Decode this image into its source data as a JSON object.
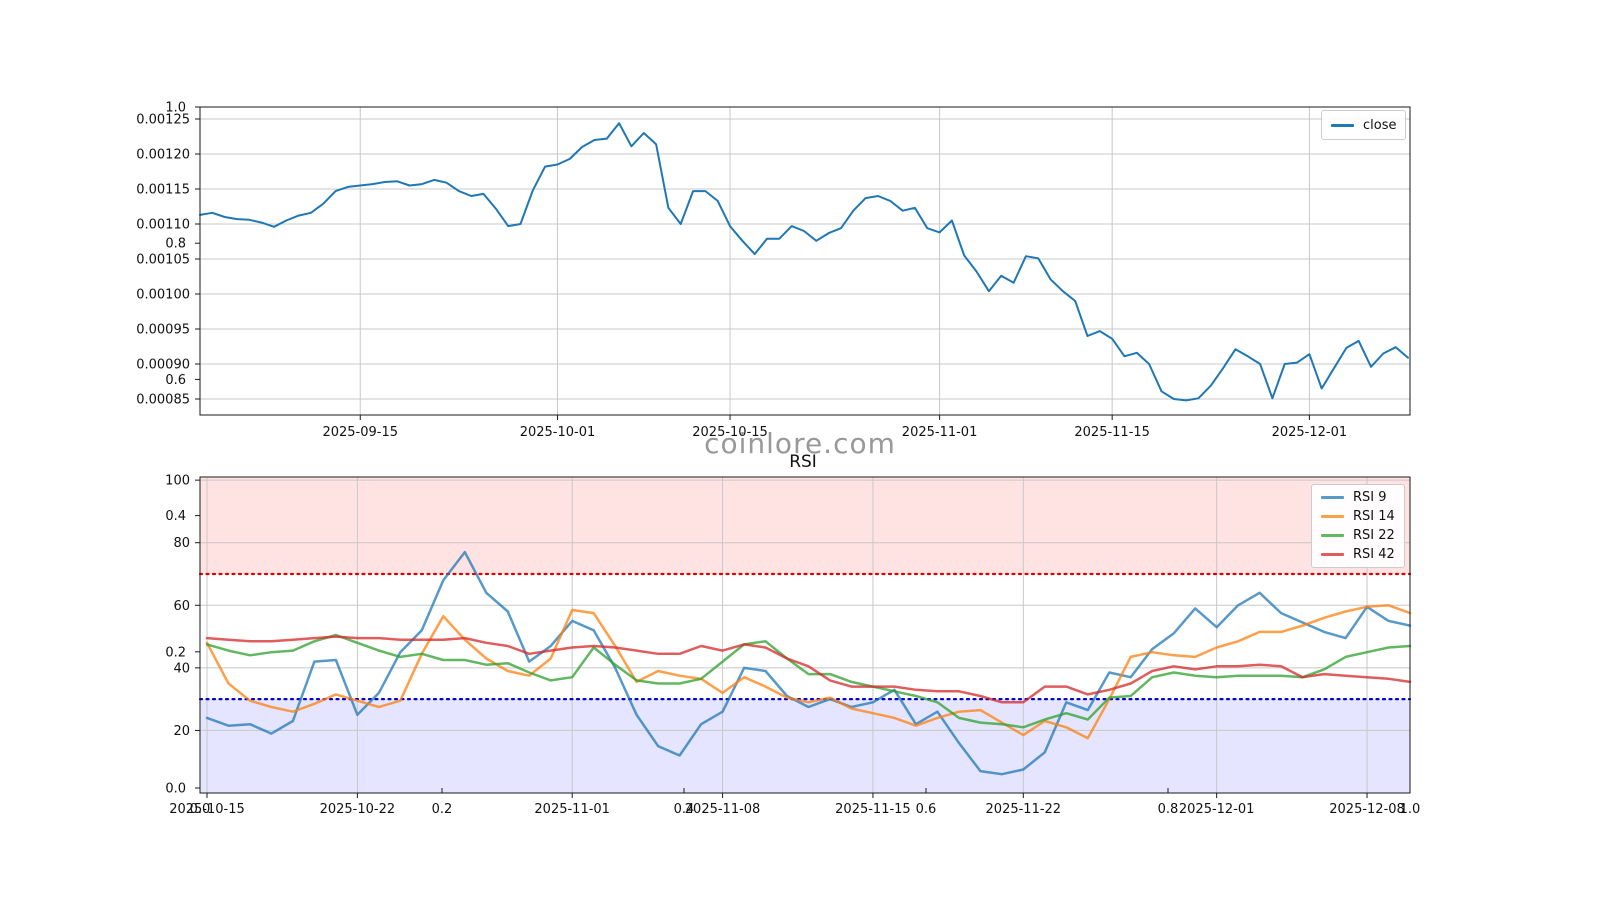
{
  "watermark": "coinlore.com",
  "colors": {
    "close": "#1f77b4",
    "rsi9": "#1f77b4",
    "rsi14": "#ff7f0e",
    "rsi22": "#2ca02c",
    "rsi42": "#d62728",
    "grid": "#c8c8c8",
    "spine": "#1a1a1a",
    "tick_text": "#111111",
    "watermark_gray": "#999999",
    "overbought_band": "rgba(255,0,0,0.11)",
    "oversold_band": "rgba(0,0,255,0.10)",
    "overbought_line": "#dd0000",
    "oversold_line": "#0000cc"
  },
  "overlay_axis": {
    "x_tick_labels": [
      "0.0",
      "0.2",
      "0.4",
      "0.6",
      "0.8",
      "1.0"
    ],
    "y_tick_labels": [
      "1.0",
      "0.8",
      "0.6",
      "0.4",
      "0.2",
      "0.0"
    ]
  },
  "chart_data": [
    {
      "id": "price",
      "type": "line",
      "title": "",
      "legend_entries": [
        "close"
      ],
      "legend_position": "upper right",
      "grid": true,
      "x_start_date": "2025-09-02",
      "x_tick_labels": [
        "2025-09-15",
        "2025-10-01",
        "2025-10-15",
        "2025-11-01",
        "2025-11-15",
        "2025-12-01"
      ],
      "x_tick_index": [
        13,
        29,
        43,
        60,
        74,
        90
      ],
      "y_tick_labels": [
        "0.00085",
        "0.00090",
        "0.00095",
        "0.00100",
        "0.00105",
        "0.00110",
        "0.00115",
        "0.00120",
        "0.00125"
      ],
      "y_tick_values_e5": [
        85,
        90,
        95,
        100,
        105,
        110,
        115,
        120,
        125
      ],
      "ylim_e5": [
        82.7,
        126.7
      ],
      "value_scale": "values are price * 1e-5",
      "series": [
        {
          "name": "close",
          "color_key": "close",
          "opacity": 1,
          "width": 2,
          "values_e5": [
            111.3,
            111.6,
            111.0,
            110.7,
            110.6,
            110.2,
            109.6,
            110.5,
            111.2,
            111.6,
            112.9,
            114.7,
            115.3,
            115.5,
            115.7,
            116.0,
            116.1,
            115.5,
            115.7,
            116.3,
            115.9,
            114.7,
            114.0,
            114.3,
            112.2,
            109.7,
            110.0,
            114.8,
            118.2,
            118.5,
            119.3,
            121.0,
            122.0,
            122.2,
            124.4,
            121.1,
            123.0,
            121.4,
            112.3,
            110.0,
            114.7,
            114.7,
            113.3,
            109.7,
            107.6,
            105.7,
            107.9,
            107.9,
            109.7,
            109.0,
            107.6,
            108.7,
            109.4,
            111.9,
            113.7,
            114.0,
            113.3,
            111.9,
            112.3,
            109.4,
            108.8,
            110.5,
            105.5,
            103.2,
            100.4,
            102.6,
            101.6,
            105.4,
            105.1,
            102.1,
            100.4,
            99.0,
            94.0,
            94.7,
            93.6,
            91.1,
            91.6,
            90.0,
            86.1,
            85.0,
            84.8,
            85.1,
            86.9,
            89.4,
            92.1,
            91.1,
            90.0,
            85.1,
            90.0,
            90.2,
            91.4,
            86.5,
            89.4,
            92.3,
            93.3,
            89.6,
            91.5,
            92.4,
            90.9
          ]
        }
      ]
    },
    {
      "id": "rsi",
      "type": "line",
      "title": "RSI",
      "legend_entries": [
        "RSI 9",
        "RSI 14",
        "RSI 22",
        "RSI 42"
      ],
      "legend_position": "upper right",
      "grid": true,
      "x_start_date": "2025-10-15",
      "x_tick_labels": [
        "2025-10-15",
        "2025-10-22",
        "2025-11-01",
        "2025-11-08",
        "2025-11-15",
        "2025-11-22",
        "2025-12-01",
        "2025-12-08"
      ],
      "x_tick_index": [
        0,
        7,
        17,
        24,
        31,
        38,
        47,
        54
      ],
      "y_tick_labels": [
        "20",
        "40",
        "60",
        "80",
        "100"
      ],
      "y_tick_values": [
        20,
        40,
        60,
        80,
        100
      ],
      "ylim": [
        0,
        101
      ],
      "bands": [
        {
          "name": "overbought",
          "from": 70,
          "to": 101,
          "color_key": "overbought_band"
        },
        {
          "name": "oversold",
          "from": 0,
          "to": 30,
          "color_key": "oversold_band"
        }
      ],
      "thresholds": [
        {
          "name": "overbought-level",
          "value": 70,
          "color_key": "overbought_line"
        },
        {
          "name": "oversold-level",
          "value": 30,
          "color_key": "oversold_line"
        }
      ],
      "series": [
        {
          "name": "RSI 9",
          "color_key": "rsi9",
          "opacity": 0.75,
          "width": 2.5,
          "values": [
            24,
            21.5,
            22,
            19,
            23,
            42,
            42.5,
            25,
            32,
            45,
            52,
            68,
            77,
            64,
            58,
            42,
            47,
            55,
            52,
            40,
            25,
            15,
            12,
            22,
            26,
            40,
            39,
            31,
            27.5,
            30,
            27.5,
            29,
            33,
            22,
            26,
            16,
            7,
            6,
            7.5,
            13,
            29,
            26.5,
            38.5,
            37,
            46,
            51,
            59,
            53,
            60,
            64,
            57.5,
            54.5,
            51.5,
            49.5,
            59.5,
            55,
            53.5
          ]
        },
        {
          "name": "RSI 14",
          "color_key": "rsi14",
          "opacity": 0.75,
          "width": 2.5,
          "values": [
            48,
            35,
            29.5,
            27.5,
            26,
            28.5,
            31.5,
            29.5,
            27.5,
            29.5,
            44.5,
            56.5,
            49,
            43,
            39,
            37.5,
            43,
            58.5,
            57.5,
            47,
            35.5,
            39,
            37.5,
            36.5,
            32,
            37,
            34,
            30.5,
            29,
            30.5,
            27,
            25.5,
            24,
            21.5,
            24,
            26,
            26.5,
            22.5,
            18.5,
            23,
            21,
            17.5,
            30,
            43.5,
            45,
            44,
            43.5,
            46.5,
            48.5,
            51.5,
            51.5,
            53.5,
            56,
            58,
            59.5,
            60,
            57.5
          ]
        },
        {
          "name": "RSI 22",
          "color_key": "rsi22",
          "opacity": 0.75,
          "width": 2.5,
          "values": [
            47.5,
            45.5,
            44,
            45,
            45.5,
            48.5,
            50.5,
            48,
            45.5,
            43.5,
            44.5,
            42.5,
            42.5,
            41,
            41.5,
            38.5,
            36,
            37,
            46.5,
            41,
            36,
            35,
            35,
            36.5,
            42,
            47.5,
            48.5,
            43,
            38,
            38,
            35.5,
            34,
            32.5,
            31,
            29,
            24,
            22.5,
            22,
            21,
            23.5,
            25.5,
            23.5,
            30.5,
            31,
            37,
            38.5,
            37.5,
            37,
            37.5,
            37.5,
            37.5,
            37,
            39.5,
            43.5,
            45,
            46.5,
            47
          ]
        },
        {
          "name": "RSI 42",
          "color_key": "rsi42",
          "opacity": 0.75,
          "width": 2.5,
          "values": [
            49.5,
            49,
            48.5,
            48.5,
            49,
            49.5,
            50,
            49.5,
            49.5,
            49,
            49,
            49,
            49.5,
            48,
            47,
            44.5,
            45.5,
            46.5,
            47,
            46.5,
            45.5,
            44.5,
            44.5,
            47,
            45.5,
            47.5,
            46.5,
            43,
            40.5,
            36,
            34,
            34,
            34,
            33,
            32.5,
            32.5,
            31,
            29,
            29,
            34,
            34,
            31.5,
            33,
            35,
            39,
            40.5,
            39.5,
            40.5,
            40.5,
            41,
            40.5,
            37,
            38,
            37.5,
            37,
            36.5,
            35.5
          ]
        }
      ]
    }
  ]
}
